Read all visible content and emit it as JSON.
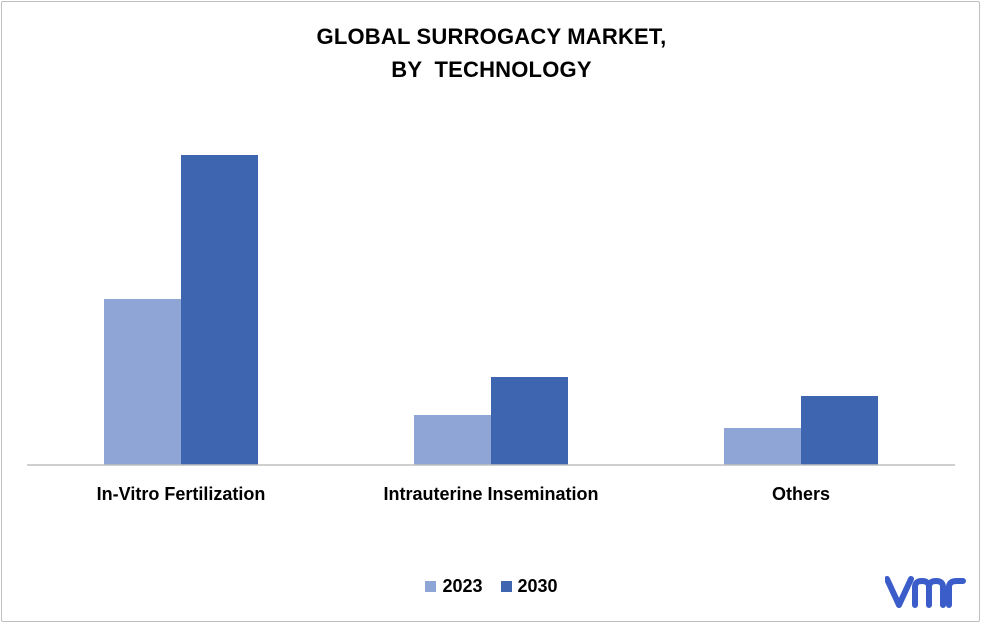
{
  "chart_data": {
    "type": "bar",
    "title_lines": [
      "GLOBAL SURROGACY MARKET,",
      "BY  TECHNOLOGY"
    ],
    "categories": [
      "In-Vitro Fertilization",
      "Intrauterine Insemination",
      "Others"
    ],
    "series": [
      {
        "name": "2023",
        "color": "#8FA5D6",
        "values": [
          166,
          50,
          37
        ]
      },
      {
        "name": "2030",
        "color": "#3E65AF",
        "values": [
          310,
          88,
          69
        ]
      }
    ],
    "ylim": [
      0,
      325
    ],
    "grid": false,
    "legend_position": "bottom"
  },
  "logo": {
    "name": "vmr-logo",
    "color": "#3B5DC9"
  }
}
